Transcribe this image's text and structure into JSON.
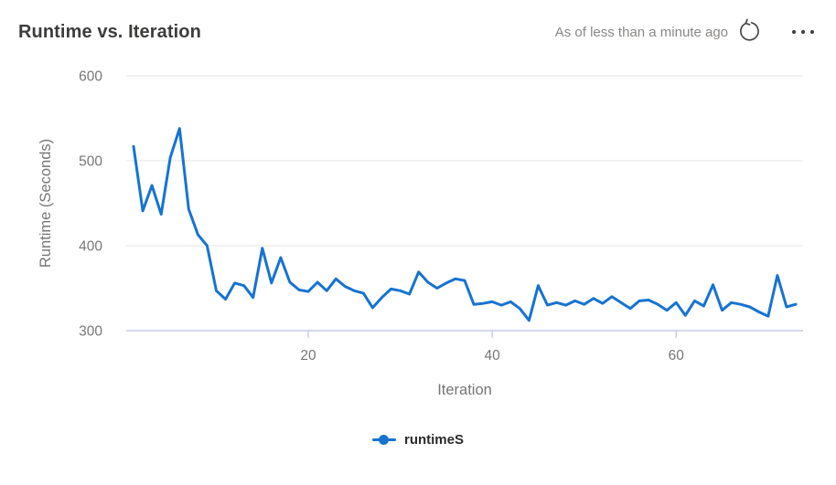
{
  "header": {
    "title": "Runtime vs. Iteration",
    "as_of": "As of less than a minute ago",
    "refresh_icon": "refresh-icon",
    "more_icon": "more-options-icon"
  },
  "legend": {
    "label": "runtimeS",
    "marker": "dot-on-line"
  },
  "colors": {
    "accent_line": "#1673d2",
    "grid": "#e4e4e4",
    "axis": "#c8cee4",
    "tick_text": "#767676",
    "axis_label_text": "#767676",
    "title_text": "#3d3c3b",
    "muted_text": "#8a8886",
    "icon": "#484644"
  },
  "chart_data": {
    "type": "line",
    "title": "Runtime vs. Iteration",
    "xlabel": "Iteration",
    "ylabel": "Runtime (Seconds)",
    "xlim": [
      0,
      74
    ],
    "ylim": [
      300,
      600
    ],
    "xticks": [
      20,
      40,
      60
    ],
    "yticks": [
      300,
      400,
      500,
      600
    ],
    "grid": true,
    "legend_position": "bottom",
    "markers": false,
    "series": [
      {
        "name": "runtimeS",
        "color": "#1673d2",
        "x_start": 1,
        "x_step": 1,
        "values": [
          517,
          441,
          471,
          437,
          504,
          538,
          443,
          413,
          400,
          347,
          337,
          356,
          353,
          339,
          397,
          356,
          386,
          357,
          348,
          346,
          357,
          347,
          361,
          352,
          347,
          344,
          327,
          339,
          349,
          347,
          343,
          369,
          357,
          350,
          356,
          361,
          359,
          331,
          332,
          334,
          330,
          334,
          326,
          312,
          353,
          330,
          333,
          330,
          335,
          331,
          338,
          332,
          340,
          333,
          326,
          335,
          336,
          331,
          324,
          333,
          318,
          335,
          329,
          354,
          324,
          333,
          331,
          328,
          322,
          317,
          365,
          328,
          331
        ]
      }
    ]
  }
}
